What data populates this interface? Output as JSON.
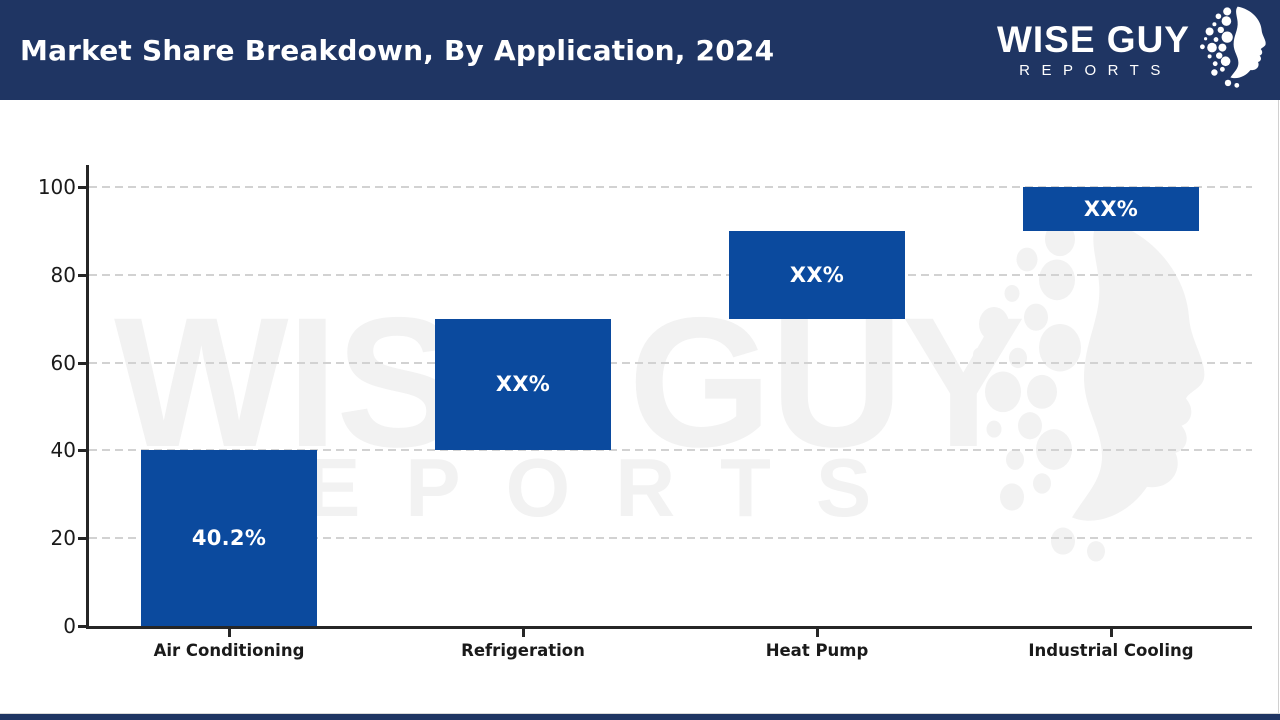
{
  "header": {
    "title": "Market Share Breakdown, By Application, 2024",
    "logo": {
      "line1": "WISE GUY",
      "line2": "REPORTS"
    }
  },
  "watermark": {
    "line1": "WISE GUY",
    "line2": "REPORTS"
  },
  "chart_data": {
    "type": "bar",
    "subtype": "waterfall",
    "title": "Market Share Breakdown, By Application, 2024",
    "categories": [
      "Air Conditioning",
      "Refrigeration",
      "Heat Pump",
      "Industrial Cooling"
    ],
    "bars": [
      {
        "category": "Air Conditioning",
        "start": 0,
        "end": 40.2,
        "label": "40.2%"
      },
      {
        "category": "Refrigeration",
        "start": 40.2,
        "end": 70,
        "label": "XX%"
      },
      {
        "category": "Heat Pump",
        "start": 70,
        "end": 90,
        "label": "XX%"
      },
      {
        "category": "Industrial Cooling",
        "start": 90,
        "end": 100,
        "label": "XX%"
      }
    ],
    "xlabel": "",
    "ylabel": "",
    "ylim": [
      0,
      100
    ],
    "yticks": [
      0,
      20,
      40,
      60,
      80,
      100
    ],
    "grid": {
      "axis": "y",
      "style": "dashed",
      "color": "#d2d2d2"
    },
    "legend": "none",
    "bar_color": "#0b4a9e",
    "bar_label_color": "#ffffff"
  },
  "colors": {
    "header_bg": "#1f3563",
    "accent_blue": "#0b4a9e",
    "watermark": "#f2f2f2",
    "page_bg": "#ffffff"
  }
}
